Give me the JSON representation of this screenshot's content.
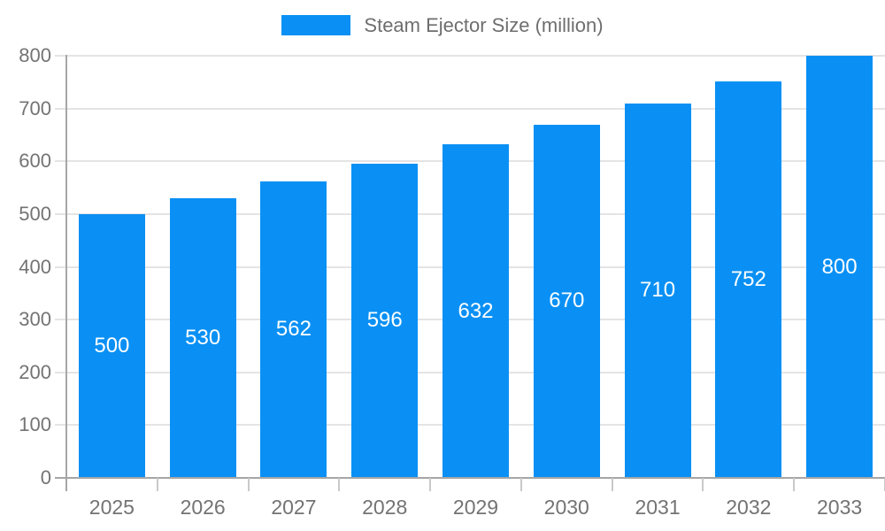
{
  "chart_data": {
    "type": "bar",
    "title": "Steam Ejector Size (million)",
    "legend": {
      "label": "Steam Ejector Size (million)",
      "position": "top-center"
    },
    "categories": [
      "2025",
      "2026",
      "2027",
      "2028",
      "2029",
      "2030",
      "2031",
      "2032",
      "2033"
    ],
    "series": [
      {
        "name": "Steam Ejector Size (million)",
        "values": [
          500,
          530,
          562,
          596,
          632,
          670,
          710,
          752,
          800
        ]
      }
    ],
    "xlabel": "",
    "ylabel": "",
    "ylim": [
      0,
      800
    ],
    "yticks": [
      0,
      100,
      200,
      300,
      400,
      500,
      600,
      700,
      800
    ],
    "grid": true,
    "value_label_position": "inside-center",
    "colors": {
      "bar": "#0a90f4",
      "value_label": "#ffffff",
      "axis_label": "#737373",
      "legend_label": "#6e6e6e",
      "axis_line": "#a6a6a6",
      "gridline": "#e4e4e4",
      "tick": "#c9c9c9",
      "background": "#ffffff"
    }
  }
}
